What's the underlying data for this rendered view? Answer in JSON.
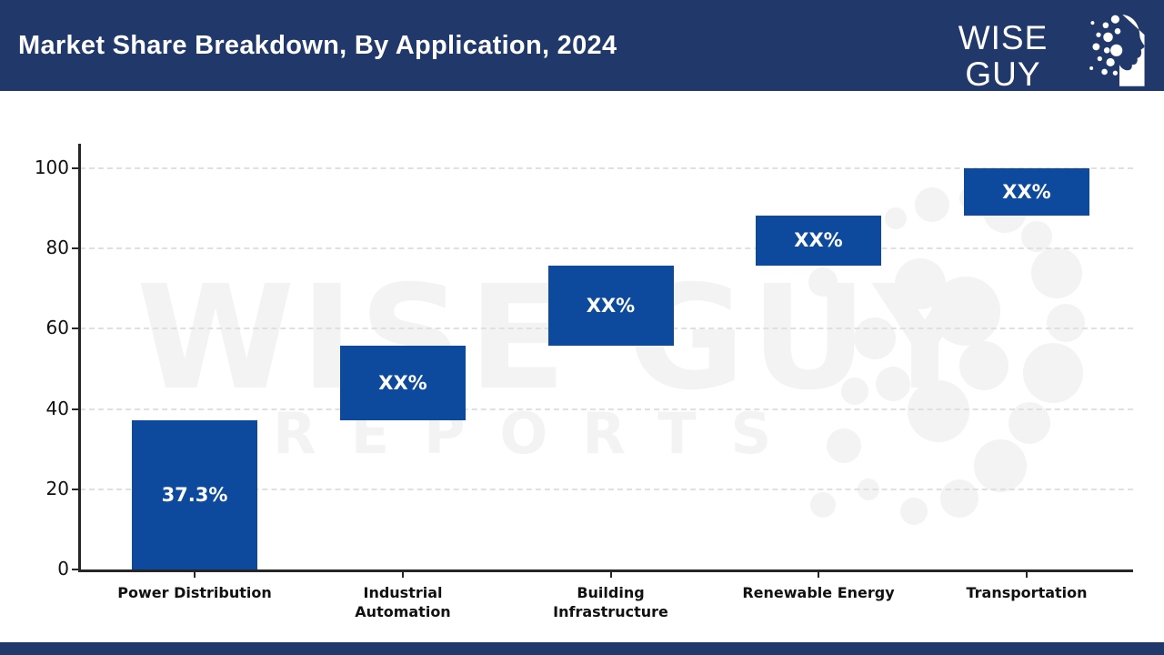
{
  "header": {
    "title": "Market Share Breakdown, By Application, 2024",
    "logo": {
      "line1": "WISE GUY",
      "line2": "REPORTS"
    }
  },
  "watermark": {
    "line1": "WISE GUY",
    "line2": "REPORTS"
  },
  "colors": {
    "header_bg": "#21386b",
    "bar": "#0d4a9d",
    "bar_label": "#ffffff",
    "grid": "#e0e0e0",
    "axis": "#262626",
    "watermark": "#f3f3f3"
  },
  "chart_data": {
    "type": "bar",
    "subtype": "waterfall",
    "title": "Market Share Breakdown, By Application, 2024",
    "categories": [
      "Power Distribution",
      "Industrial Automation",
      "Building Infrastructure",
      "Renewable Energy",
      "Transportation"
    ],
    "category_lines": [
      [
        "Power Distribution"
      ],
      [
        "Industrial",
        "Automation"
      ],
      [
        "Building",
        "Infrastructure"
      ],
      [
        "Renewable Energy"
      ],
      [
        "Transportation"
      ]
    ],
    "segments": [
      {
        "start": 0,
        "end": 37.3,
        "label": "37.3%"
      },
      {
        "start": 37.3,
        "end": 55.8,
        "label": "XX%"
      },
      {
        "start": 55.8,
        "end": 75.8,
        "label": "XX%"
      },
      {
        "start": 75.8,
        "end": 88.3,
        "label": "XX%"
      },
      {
        "start": 88.3,
        "end": 100,
        "label": "XX%"
      }
    ],
    "yticks": [
      0,
      20,
      40,
      60,
      80,
      100
    ],
    "ylim": [
      0,
      100
    ],
    "grid": "horizontal-dashed",
    "legend": "none",
    "xlabel": "",
    "ylabel": ""
  }
}
